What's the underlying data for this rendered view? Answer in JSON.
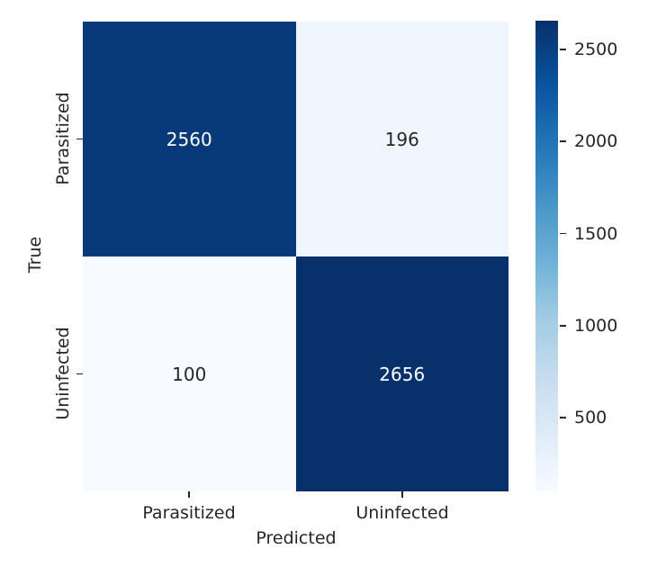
{
  "figure": {
    "background": "#ffffff",
    "axis_text_color": "#262626"
  },
  "chart_data": {
    "type": "heatmap",
    "title": "",
    "xlabel": "Predicted",
    "ylabel": "True",
    "x_categories": [
      "Parasitized",
      "Uninfected"
    ],
    "y_categories": [
      "Parasitized",
      "Uninfected"
    ],
    "values": [
      [
        2560,
        196
      ],
      [
        100,
        2656
      ]
    ],
    "vmin": 100,
    "vmax": 2656,
    "colormap": "Blues",
    "colormap_stops": [
      "#f7fbff",
      "#deebf7",
      "#c6dbef",
      "#9ecae1",
      "#6baed6",
      "#4292c6",
      "#2171b5",
      "#08519c",
      "#08306b"
    ],
    "colorbar_ticks": [
      500,
      1000,
      1500,
      2000,
      2500
    ],
    "annotation_color_light_cells": "#262626",
    "annotation_color_dark_cells": "#ffffff",
    "grid": false,
    "legend_position": "right-colorbar"
  }
}
